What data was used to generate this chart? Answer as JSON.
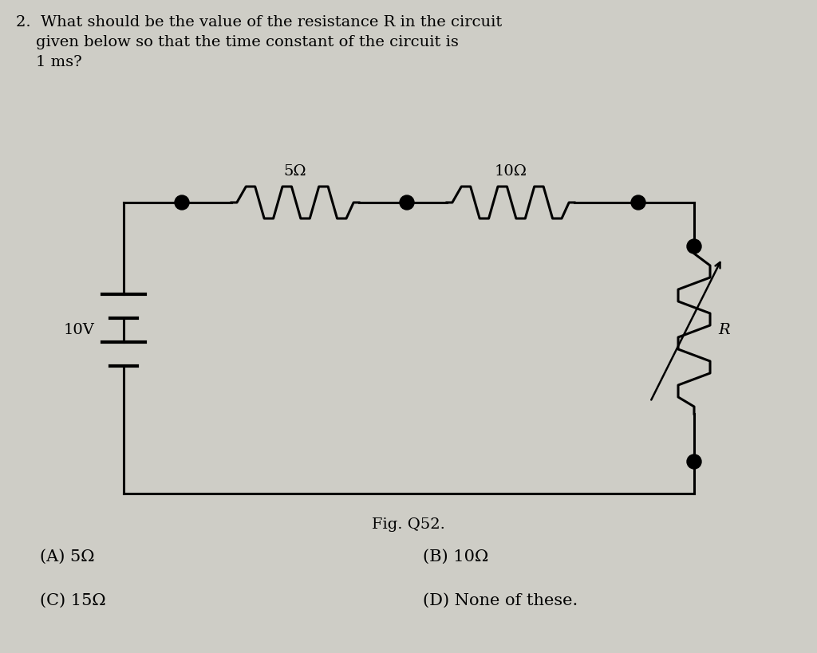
{
  "bg_color": "#cecdc6",
  "fig_label": "Fig. Q52.",
  "options": [
    "(A) 5Ω",
    "(B) 10Ω",
    "(C) 15Ω",
    "(D) None of these."
  ],
  "resistor1_label": "5Ω",
  "resistor2_label": "10Ω",
  "resistor3_label": "R",
  "voltage_label": "10V",
  "line_color": "#000000",
  "lw": 2.2,
  "title_line1": "2.  What should be the value of the resistance R in the circuit",
  "title_line2": "    given below so that the time constant of the circuit is",
  "title_line3": "    1 ms?"
}
